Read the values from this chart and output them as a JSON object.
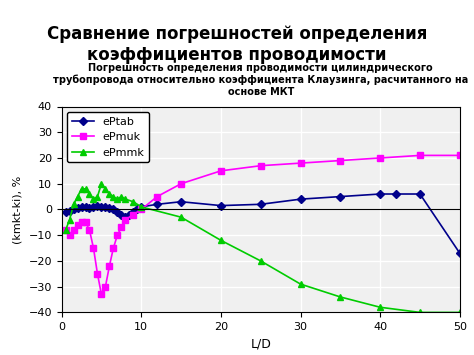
{
  "title_main": "Сравнение погрешностей определения\nкоэффициентов проводимости",
  "subtitle": "Погрешность определения проводимости цилиндрического\nтрубопровода относительно коэффициента Клаузинга, расчитанного на\nоснове МКТ",
  "xlabel": "L/D",
  "ylabel": "(kmkt-ki), %",
  "xlim": [
    0,
    50
  ],
  "ylim": [
    -40,
    40
  ],
  "xticks": [
    0,
    10,
    20,
    30,
    40,
    50
  ],
  "yticks": [
    -40,
    -30,
    -20,
    -10,
    0,
    10,
    20,
    30,
    40
  ],
  "background_color": "#f0f0f0",
  "grid_color": "#ffffff",
  "series": [
    {
      "label": "ePtab",
      "color": "#00008B",
      "marker": "D",
      "markersize": 4,
      "x": [
        0.5,
        1,
        1.5,
        2,
        2.5,
        3,
        3.5,
        4,
        4.5,
        5,
        5.5,
        6,
        6.5,
        7,
        7.5,
        8,
        8.5,
        9,
        9.5,
        10,
        12,
        15,
        20,
        25,
        30,
        35,
        40,
        42,
        45,
        50
      ],
      "y": [
        -1,
        -0.5,
        0,
        0.5,
        1,
        1,
        0.5,
        1,
        1.5,
        1,
        1,
        0.5,
        0,
        -1,
        -2,
        -3,
        -2,
        -1,
        0,
        1,
        2,
        3,
        1.5,
        2,
        4,
        5,
        6,
        6,
        6,
        -17
      ]
    },
    {
      "label": "ePmuk",
      "color": "#FF00FF",
      "marker": "s",
      "markersize": 4,
      "x": [
        0.5,
        1,
        1.5,
        2,
        2.5,
        3,
        3.5,
        4,
        4.5,
        5,
        5.5,
        6,
        6.5,
        7,
        7.5,
        8,
        9,
        10,
        12,
        15,
        20,
        25,
        30,
        35,
        40,
        45,
        50
      ],
      "y": [
        -8,
        -10,
        -8,
        -6,
        -5,
        -5,
        -8,
        -15,
        -25,
        -33,
        -30,
        -22,
        -15,
        -10,
        -7,
        -4,
        -2,
        0,
        5,
        10,
        15,
        17,
        18,
        19,
        20,
        21,
        21
      ]
    },
    {
      "label": "ePmmk",
      "color": "#00CC00",
      "marker": "^",
      "markersize": 4,
      "x": [
        0.5,
        1,
        1.5,
        2,
        2.5,
        3,
        3.5,
        4,
        4.5,
        5,
        5.5,
        6,
        6.5,
        7,
        7.5,
        8,
        9,
        10,
        15,
        20,
        25,
        30,
        35,
        40,
        45,
        50
      ],
      "y": [
        -8,
        -4,
        2,
        5,
        8,
        8,
        6,
        4,
        5,
        10,
        8,
        6,
        5,
        4,
        5,
        4,
        3,
        1,
        -3,
        -12,
        -20,
        -29,
        -34,
        -38,
        -40,
        -40
      ]
    }
  ]
}
